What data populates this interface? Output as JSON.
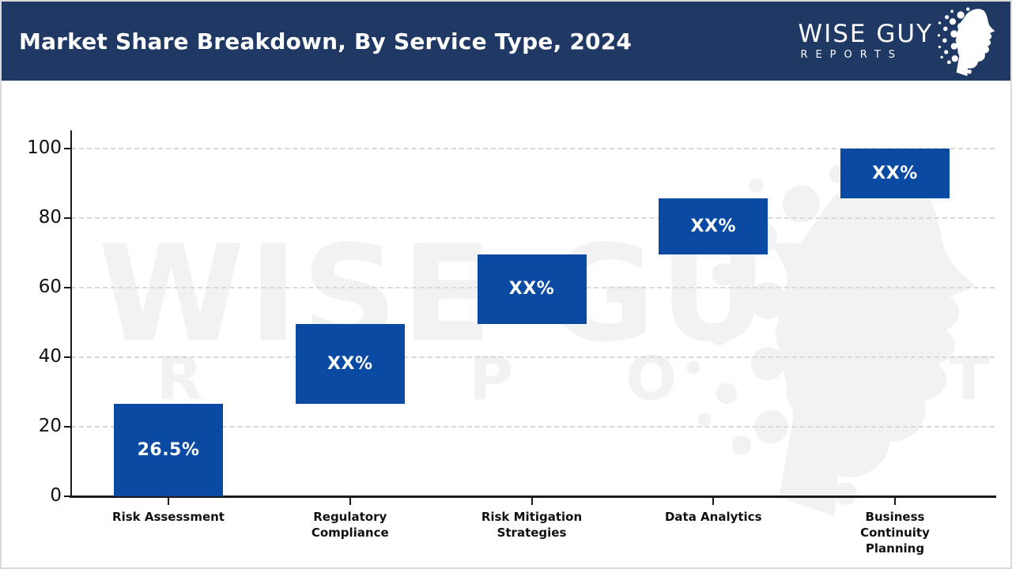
{
  "header": {
    "title": "Market Share Breakdown, By Service Type, 2024",
    "brand": {
      "line1": "WISE GUY",
      "line2": "REPORTS"
    },
    "bg_color": "#1f3864"
  },
  "watermark": {
    "line1": "WISE GUY",
    "line2": "R E P O R T S"
  },
  "chart_data": {
    "type": "bar",
    "subtype": "waterfall",
    "title": "Market Share Breakdown, By Service Type, 2024",
    "categories": [
      {
        "lines": "Risk Assessment"
      },
      {
        "lines": "Regulatory\nCompliance"
      },
      {
        "lines": "Risk Mitigation\nStrategies"
      },
      {
        "lines": "Data Analytics"
      },
      {
        "lines": "Business\nContinuity\nPlanning"
      }
    ],
    "segments": [
      {
        "label": "26.5%",
        "start": 0,
        "end": 26.5
      },
      {
        "label": "XX%",
        "start": 26.5,
        "end": 49.5
      },
      {
        "label": "XX%",
        "start": 49.5,
        "end": 69.5
      },
      {
        "label": "XX%",
        "start": 69.5,
        "end": 85.5
      },
      {
        "label": "XX%",
        "start": 85.5,
        "end": 100
      }
    ],
    "yticks": [
      0,
      20,
      40,
      60,
      80,
      100
    ],
    "ylim": [
      0,
      105
    ],
    "xlabel": "",
    "ylabel": "",
    "grid": "horizontal-dashed",
    "legend": "none",
    "bar_color": "#0b4aa2"
  }
}
